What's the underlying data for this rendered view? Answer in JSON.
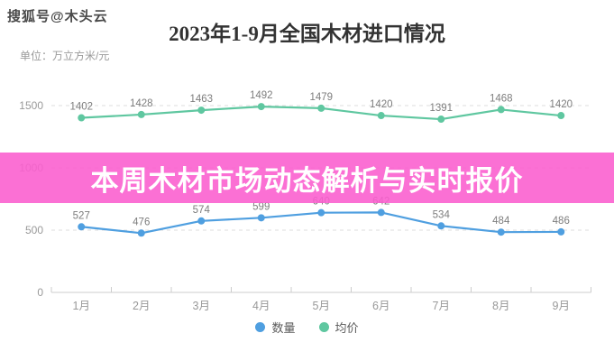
{
  "watermark": "搜狐号@木头云",
  "header": {
    "title": "2023年1-9月全国木材进口情况",
    "unit_label": "单位：万立方米/元"
  },
  "banner": {
    "text": "本周木材市场动态解析与实时报价",
    "background_color": "#fa5ecf",
    "text_color": "#ffffff"
  },
  "chart_data": {
    "type": "line",
    "title": "2023年1-9月全国木材进口情况",
    "unit": "万立方米/元",
    "categories": [
      "1月",
      "2月",
      "3月",
      "4月",
      "5月",
      "6月",
      "7月",
      "8月",
      "9月"
    ],
    "series": [
      {
        "name": "数量",
        "color": "#4f9fe0",
        "values": [
          527,
          476,
          574,
          599,
          640,
          642,
          534,
          484,
          486
        ]
      },
      {
        "name": "均价",
        "color": "#5fc7a0",
        "values": [
          1402,
          1428,
          1463,
          1492,
          1479,
          1420,
          1391,
          1468,
          1420
        ]
      }
    ],
    "ylim": [
      0,
      1500
    ],
    "y_ticks": [
      0,
      500,
      1000,
      1500
    ],
    "grid": "horizontal-dashed",
    "legend_position": "bottom",
    "data_labels": true,
    "label_color": "#7d7d7d",
    "axis_color": "#cccccc",
    "tick_label_color": "#999999"
  }
}
